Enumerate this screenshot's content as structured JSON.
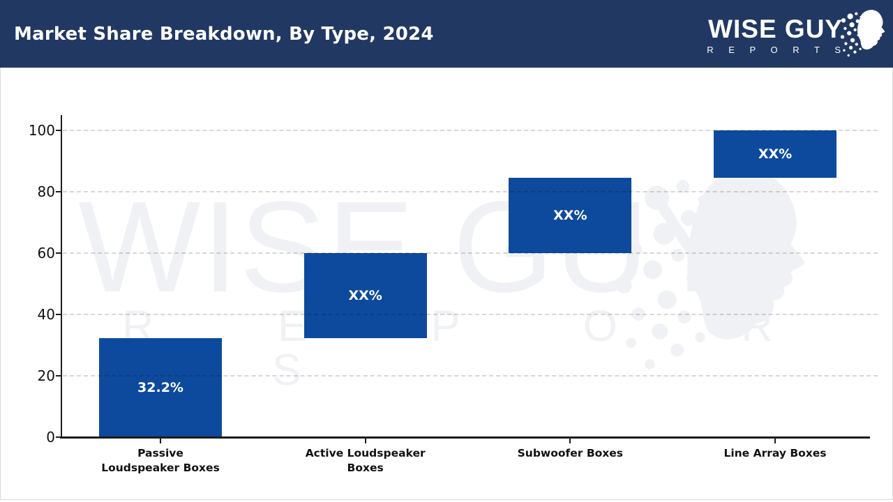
{
  "header": {
    "title": "Market Share Breakdown, By Type, 2024",
    "bg_color": "#203862",
    "brand_top": "WISE GUY",
    "brand_bottom": "R E P O R T S"
  },
  "watermark": {
    "line1": "WISE GUY",
    "line2": "R E P O R T S",
    "color": "#f0f1f4"
  },
  "chart_data": {
    "type": "bar",
    "subtype": "stacked-waterfall",
    "title": "Market Share Breakdown, By Type, 2024",
    "categories": [
      "Passive Loudspeaker Boxes",
      "Active Loudspeaker Boxes",
      "Subwoofer Boxes",
      "Line Array Boxes"
    ],
    "categories_display": [
      [
        "Passive",
        "Loudspeaker Boxes"
      ],
      [
        "Active Loudspeaker",
        "Boxes"
      ],
      [
        "Subwoofer Boxes"
      ],
      [
        "Line Array Boxes"
      ]
    ],
    "bars": [
      {
        "category": "Passive Loudspeaker Boxes",
        "start": 0,
        "end": 32.2,
        "label": "32.2%"
      },
      {
        "category": "Active Loudspeaker Boxes",
        "start": 32.2,
        "end": 60,
        "label": "XX%"
      },
      {
        "category": "Subwoofer Boxes",
        "start": 60,
        "end": 84.5,
        "label": "XX%"
      },
      {
        "category": "Line Array Boxes",
        "start": 84.5,
        "end": 100,
        "label": "XX%"
      }
    ],
    "xlabel": "",
    "ylabel": "",
    "yticks": [
      0,
      20,
      40,
      60,
      80,
      100
    ],
    "ylim": [
      0,
      105
    ],
    "grid": "horizontal-dashed",
    "legend": "none",
    "bar_color": "#0d4a9d",
    "value_label_color": "#ffffff"
  }
}
